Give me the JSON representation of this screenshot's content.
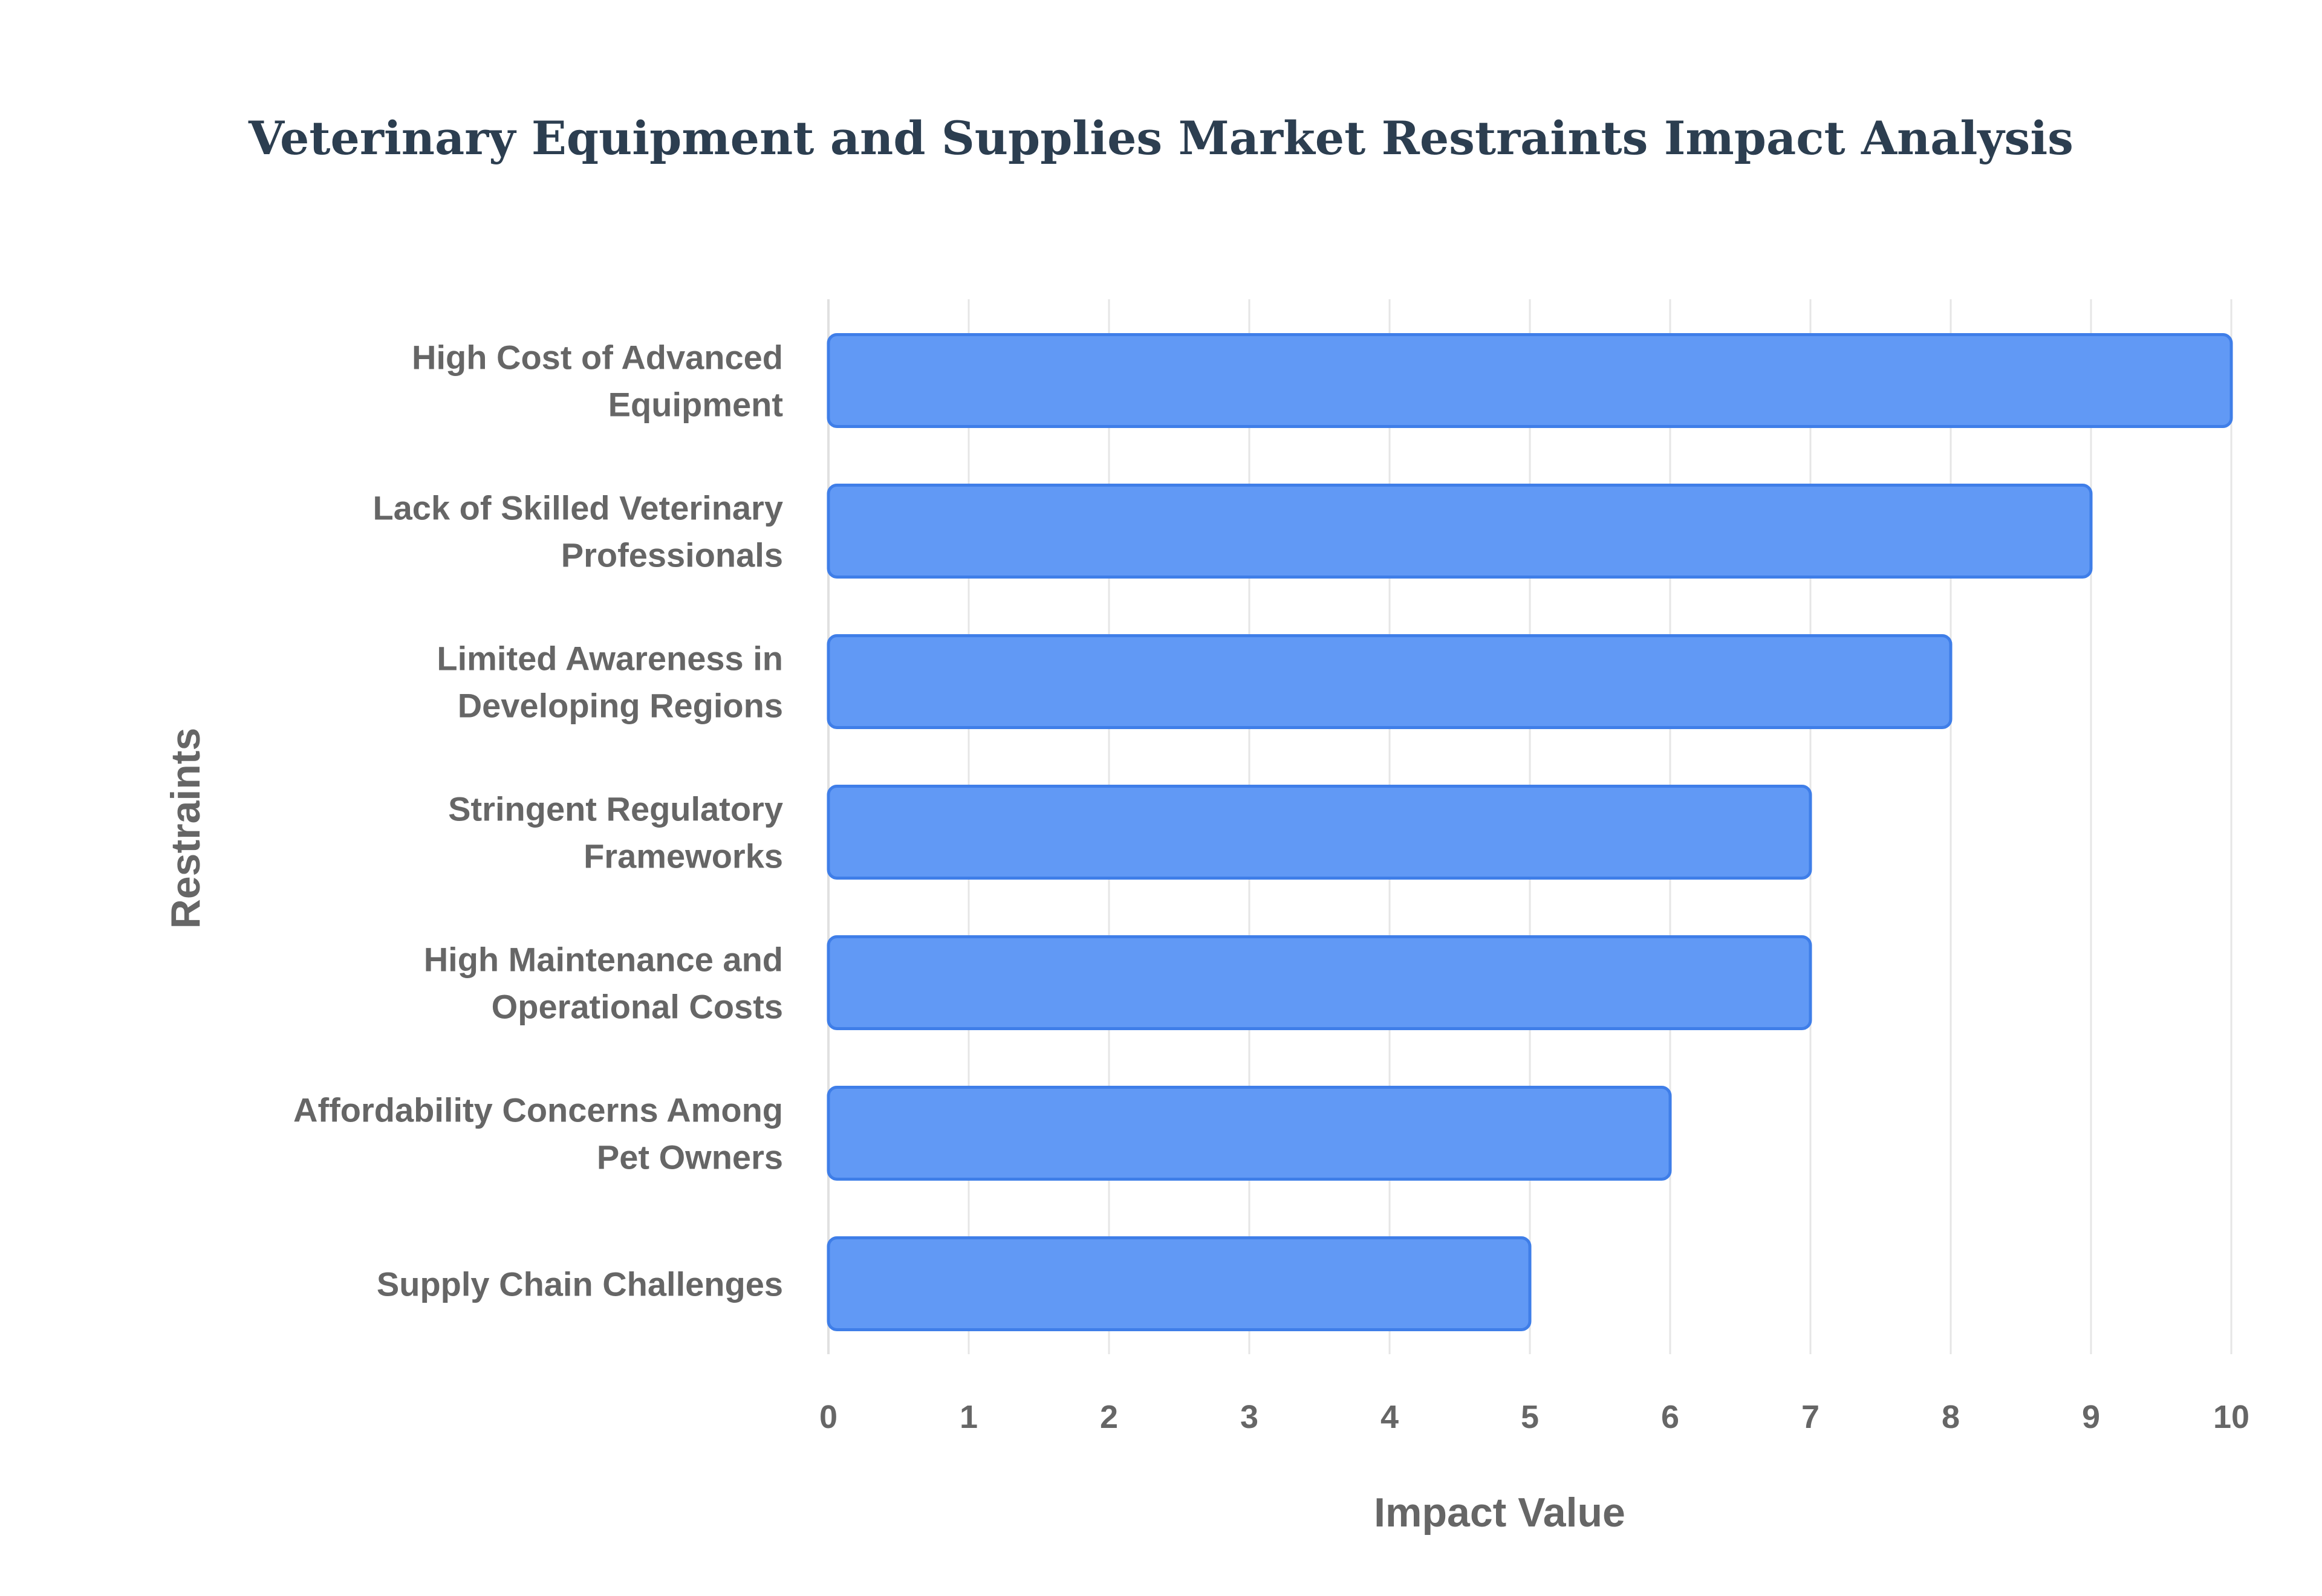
{
  "chart_data": {
    "type": "bar",
    "orientation": "horizontal",
    "title": "Veterinary Equipment and Supplies Market Restraints Impact Analysis",
    "xlabel": "Impact Value",
    "ylabel": "Restraints",
    "xlim": [
      0,
      10
    ],
    "ticks": [
      0,
      1,
      2,
      3,
      4,
      5,
      6,
      7,
      8,
      9,
      10
    ],
    "grid": true,
    "legend": "none",
    "bar_color": "#6199f5",
    "bar_border_color": "#3f7ee8",
    "categories": [
      [
        "High Cost of Advanced",
        "Equipment"
      ],
      [
        "Lack of Skilled Veterinary",
        "Professionals"
      ],
      [
        "Limited Awareness in",
        "Developing Regions"
      ],
      [
        "Stringent Regulatory",
        "Frameworks"
      ],
      [
        "High Maintenance and",
        "Operational Costs"
      ],
      [
        "Affordability Concerns Among",
        "Pet Owners"
      ],
      [
        "Supply Chain Challenges"
      ]
    ],
    "values": [
      10,
      9,
      8,
      7,
      7,
      6,
      5
    ]
  }
}
